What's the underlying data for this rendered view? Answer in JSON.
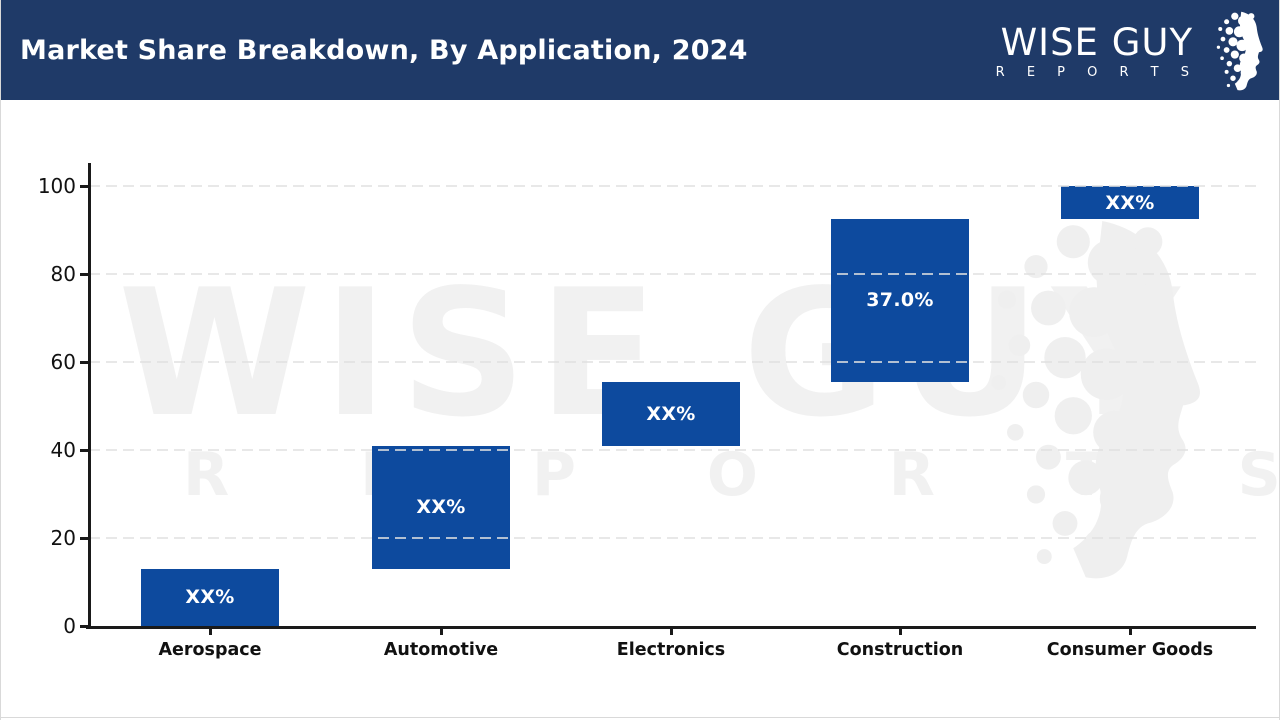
{
  "header": {
    "title": "Market Share Breakdown, By Application, 2024",
    "logo": {
      "line1": "WISE GUY",
      "line2": "R E P O R T S"
    }
  },
  "watermark": {
    "line1": "WISE GUY",
    "line2": "R E P O R T S"
  },
  "chart_data": {
    "type": "bar",
    "subtype": "waterfall",
    "title": "Market Share Breakdown, By Application, 2024",
    "categories": [
      "Aerospace",
      "Automotive",
      "Electronics",
      "Construction",
      "Consumer Goods"
    ],
    "series": [
      {
        "name": "Market Share (%)",
        "starts": [
          0,
          13,
          41,
          55.5,
          92.5
        ],
        "ends": [
          13,
          41,
          55.5,
          92.5,
          100
        ],
        "values": [
          13,
          28,
          14.5,
          37.0,
          7.5
        ]
      }
    ],
    "bar_labels": [
      "XX%",
      "XX%",
      "XX%",
      "37.0%",
      "XX%"
    ],
    "xlabel": "",
    "ylabel": "",
    "yticks": [
      0,
      20,
      40,
      60,
      80,
      100
    ],
    "ylim": [
      0,
      105
    ],
    "grid": true,
    "grid_style": "dashed",
    "legend": "none",
    "bar_color": "#0d4a9e",
    "label_color": "#ffffff"
  },
  "colors": {
    "header_background": "#1f3a68",
    "bar_blue": "#0d4a9e",
    "axis_black": "#1a1a1a",
    "watermark_gray": "#f1f1f1"
  }
}
